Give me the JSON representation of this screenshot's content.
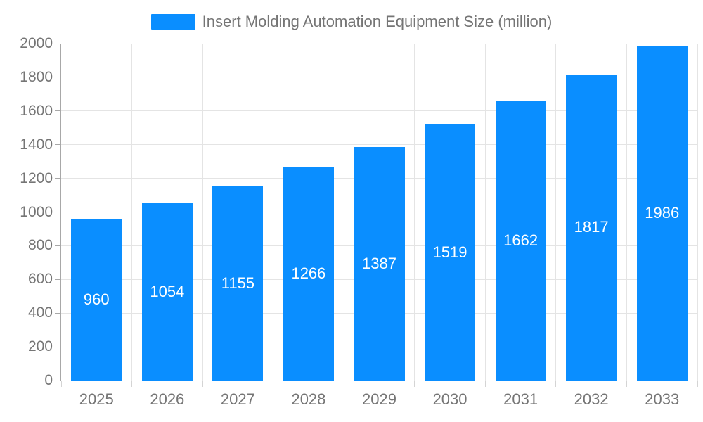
{
  "chart_data": {
    "type": "bar",
    "title": "Insert Molding Automation Equipment Size (million)",
    "series_name": "Insert Molding Automation Equipment Size (million)",
    "categories": [
      "2025",
      "2026",
      "2027",
      "2028",
      "2029",
      "2030",
      "2031",
      "2032",
      "2033"
    ],
    "values": [
      960,
      1054,
      1155,
      1266,
      1387,
      1519,
      1662,
      1817,
      1986
    ],
    "xlabel": "",
    "ylabel": "",
    "ylim": [
      0,
      2000
    ],
    "y_ticks": [
      0,
      200,
      400,
      600,
      800,
      1000,
      1200,
      1400,
      1600,
      1800,
      2000
    ],
    "grid": true,
    "legend_position": "top",
    "colors": {
      "bar": "#0a8eff",
      "bar_value_label": "#ffffff",
      "axis_text": "#757575",
      "title_text": "#757575",
      "grid_line": "#e4e4e4",
      "axis_line": "#a8a8a8",
      "y_tick_mark": "#a8a8a8",
      "x_tick_mark": "#d4d4d4",
      "background": "#ffffff"
    }
  },
  "legend": {
    "label": "Insert Molding Automation Equipment Size (million)"
  }
}
